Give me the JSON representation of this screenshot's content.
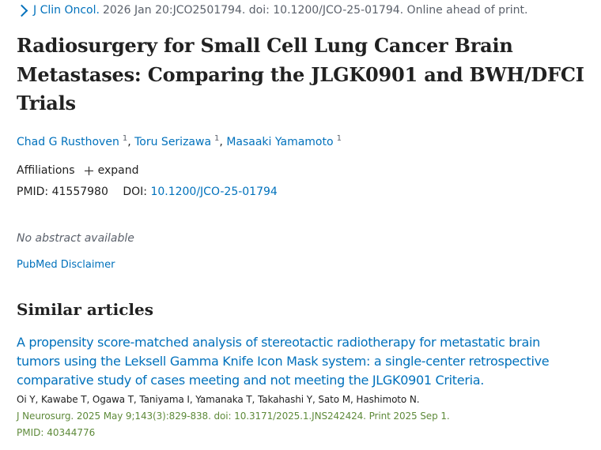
{
  "citation": {
    "journal": "J Clin Oncol.",
    "details": "2026 Jan 20:JCO2501794. doi: 10.1200/JCO-25-01794. Online ahead of print."
  },
  "title": "Radiosurgery for Small Cell Lung Cancer Brain Metastases: Comparing the JLGK0901 and BWH/DFCI Trials",
  "authors": [
    {
      "name": "Chad G Rusthoven",
      "sup": "1"
    },
    {
      "name": "Toru Serizawa",
      "sup": "1"
    },
    {
      "name": "Masaaki Yamamoto",
      "sup": "1"
    }
  ],
  "affiliations": {
    "label": "Affiliations",
    "expand_label": "expand"
  },
  "ids": {
    "pmid_label": "PMID:",
    "pmid": "41557980",
    "doi_label": "DOI:",
    "doi": "10.1200/JCO-25-01794"
  },
  "no_abstract": "No abstract available",
  "disclaimer": "PubMed Disclaimer",
  "similar": {
    "heading": "Similar articles",
    "articles": [
      {
        "title": "A propensity score-matched analysis of stereotactic radiotherapy for metastatic brain tumors using the Leksell Gamma Knife Icon Mask system: a single-center retrospective comparative study of cases meeting and not meeting the JLGK0901 Criteria.",
        "authors": "Oi Y, Kawabe T, Ogawa T, Taniyama I, Yamanaka T, Takahashi Y, Sato M, Hashimoto N.",
        "citation": "J Neurosurg. 2025 May 9;143(3):829-838. doi: 10.3171/2025.1.JNS242424. Print 2025 Sep 1.",
        "pmid": "PMID: 40344776"
      }
    ]
  },
  "colors": {
    "link": "#0071bc",
    "text": "#212121",
    "muted": "#5b616b",
    "citation_green": "#5e8a3a"
  }
}
